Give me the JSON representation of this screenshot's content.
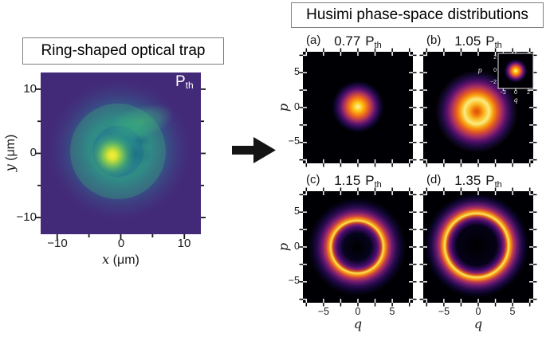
{
  "left": {
    "title": "Ring-shaped optical trap",
    "annotation": {
      "main": "P",
      "sub": "th"
    },
    "yticks": [
      "10",
      "0",
      "−10"
    ],
    "xticks": [
      "−10",
      "0",
      "10"
    ],
    "ylabel_var": "y",
    "ylabel_unit": "(μm)",
    "xlabel_var": "x",
    "xlabel_unit": "(μm)"
  },
  "right": {
    "title": "Husimi phase-space distributions",
    "panels": [
      {
        "tag": "(a)",
        "power": "0.77",
        "p": "P",
        "sub": "th"
      },
      {
        "tag": "(b)",
        "power": "1.05",
        "p": "P",
        "sub": "th"
      },
      {
        "tag": "(c)",
        "power": "1.15",
        "p": "P",
        "sub": "th"
      },
      {
        "tag": "(d)",
        "power": "1.35",
        "p": "P",
        "sub": "th"
      }
    ],
    "yticks": [
      "5",
      "0",
      "−5"
    ],
    "xticks": [
      "−5",
      "0",
      "5"
    ],
    "ylabel": "p",
    "xlabel": "q",
    "inset": {
      "yticks": [
        "2",
        "0",
        "−2"
      ],
      "xticks": [
        "−2",
        "0",
        "2"
      ],
      "ylabel": "p",
      "xlabel": "q"
    }
  },
  "axes": {
    "husimi": {
      "min": -8,
      "max": 8,
      "step": 2.5
    },
    "trap": {
      "min": -12.6,
      "max": 12.6,
      "tick_values": [
        -10,
        -5,
        0,
        5,
        10
      ],
      "major": [
        -10,
        0,
        10
      ]
    },
    "inset": {
      "min": -2.8,
      "max": 2.8,
      "tick_values": [
        -2,
        0,
        2
      ]
    }
  },
  "colors": {
    "viridis_bg": "#432a79",
    "viridis_peak": "#f2ee3f",
    "inferno_peak": "#f7ea68",
    "inferno_bg": "#000004"
  },
  "chart_data": [
    {
      "id": "trap",
      "type": "heatmap",
      "title": "Ring-shaped optical trap",
      "colormap": "viridis",
      "xlabel": "x (μm)",
      "ylabel": "y (μm)",
      "xlim": [
        -12.6,
        12.6
      ],
      "ylim": [
        -12.6,
        12.6
      ],
      "xticks": [
        -10,
        0,
        10
      ],
      "yticks": [
        10,
        0,
        -10
      ],
      "annotation": "Pth",
      "description": "Diffuse ring-shaped condensate density of ~6 μm radius with bright emission peak near (−1, 0) μm"
    },
    {
      "id": "a",
      "type": "heatmap",
      "label": "(a)",
      "power": "0.77 Pth",
      "colormap": "inferno",
      "xlabel": "q",
      "ylabel": "p",
      "xlim": [
        -8,
        8
      ],
      "ylim": [
        -8,
        8
      ],
      "xticks": [
        -5,
        0,
        5
      ],
      "yticks": [
        5,
        0,
        -5
      ],
      "description": "Gaussian peak centered at origin, radius ≈ 1.5"
    },
    {
      "id": "b",
      "type": "heatmap",
      "label": "(b)",
      "power": "1.05 Pth",
      "colormap": "inferno",
      "xlabel": "q",
      "ylabel": "p",
      "xlim": [
        -8,
        8
      ],
      "ylim": [
        -8,
        8
      ],
      "xticks": [
        -5,
        0,
        5
      ],
      "yticks": [
        5,
        0,
        -5
      ],
      "description": "Bright ring of radius ≈ 1.9 with orange filled centre and broad halo",
      "inset": {
        "xlim": [
          -2.8,
          2.8
        ],
        "ylim": [
          -2.8,
          2.8
        ],
        "xticks": [
          -2,
          0,
          2
        ],
        "yticks": [
          2,
          0,
          -2
        ],
        "xlabel": "q",
        "ylabel": "p",
        "description": "Gaussian peak at origin"
      }
    },
    {
      "id": "c",
      "type": "heatmap",
      "label": "(c)",
      "power": "1.15 Pth",
      "colormap": "inferno",
      "xlabel": "q",
      "ylabel": "p",
      "xlim": [
        -8,
        8
      ],
      "ylim": [
        -8,
        8
      ],
      "xticks": [
        -5,
        0,
        5
      ],
      "yticks": [
        5,
        0,
        -5
      ],
      "description": "Ring of radius ≈ 3.8 with dark centre"
    },
    {
      "id": "d",
      "type": "heatmap",
      "label": "(d)",
      "power": "1.35 Pth",
      "colormap": "inferno",
      "xlabel": "q",
      "ylabel": "p",
      "xlim": [
        -8,
        8
      ],
      "ylim": [
        -8,
        8
      ],
      "xticks": [
        -5,
        0,
        5
      ],
      "yticks": [
        5,
        0,
        -5
      ],
      "description": "Ring of radius ≈ 4.6 with dark centre"
    }
  ]
}
